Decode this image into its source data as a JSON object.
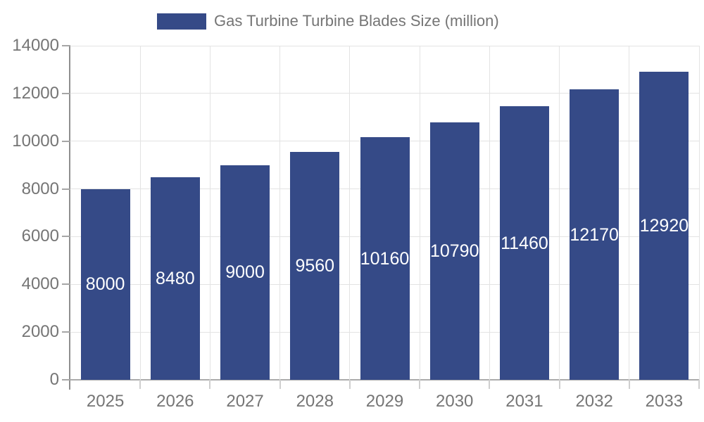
{
  "chart_data": {
    "type": "bar",
    "categories": [
      "2025",
      "2026",
      "2027",
      "2028",
      "2029",
      "2030",
      "2031",
      "2032",
      "2033"
    ],
    "series": [
      {
        "name": "Gas Turbine Turbine Blades Size (million)",
        "values": [
          8000,
          8480,
          9000,
          9560,
          10160,
          10790,
          11460,
          12170,
          12920
        ]
      }
    ],
    "value_labels": [
      "8000",
      "8480",
      "9000",
      "9560",
      "10160",
      "10790",
      "11460",
      "12170",
      "12920"
    ],
    "ylim": [
      0,
      14000
    ],
    "yticks": [
      0,
      2000,
      4000,
      6000,
      8000,
      10000,
      12000,
      14000
    ],
    "grid": true,
    "legend_position": "top",
    "colors": {
      "bar": "#354A87",
      "bar_label": "#FFFFFF",
      "axis_text": "#757575",
      "gridline": "#E3E3E3",
      "axis_line": "#8F8F8F"
    }
  }
}
